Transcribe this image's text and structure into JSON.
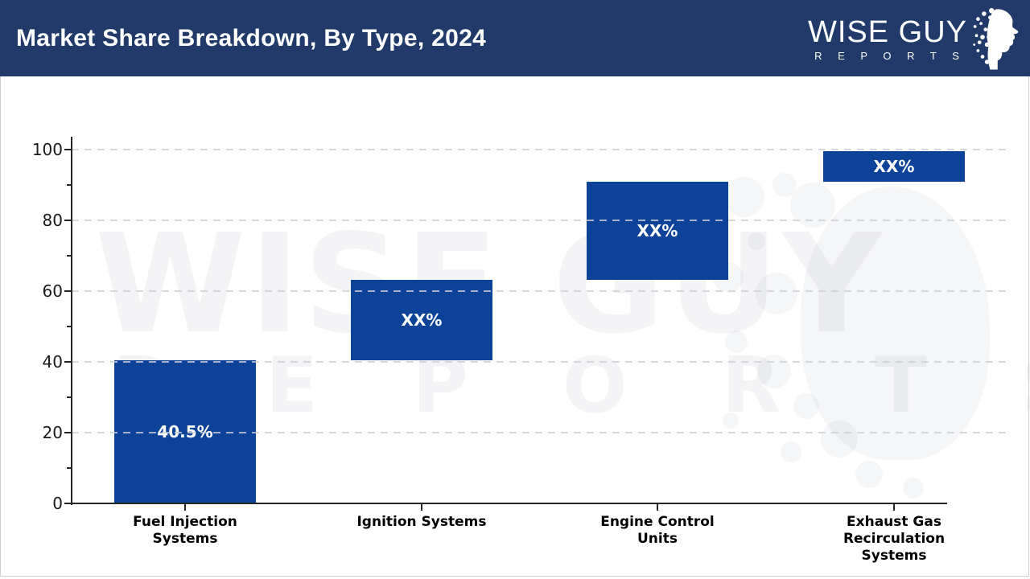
{
  "header": {
    "title": "Market Share Breakdown, By Type, 2024",
    "logo": {
      "line1": "WISE GUY",
      "line2": "R E P O R T S"
    }
  },
  "watermark": {
    "line1": "WISE GUY",
    "line2": "R E P O R T S"
  },
  "chart_data": {
    "type": "bar",
    "subtype": "waterfall",
    "title": "Market Share Breakdown, By Type, 2024",
    "categories": [
      "Fuel Injection Systems",
      "Ignition Systems",
      "Engine Control Units",
      "Exhaust Gas Recirculation Systems"
    ],
    "category_lines": [
      [
        "Fuel Injection",
        "Systems"
      ],
      [
        "Ignition Systems"
      ],
      [
        "Engine Control",
        "Units"
      ],
      [
        "Exhaust Gas",
        "Recirculation",
        "Systems"
      ]
    ],
    "segments": [
      {
        "category": "Fuel Injection Systems",
        "start": 0,
        "end": 40.5,
        "label": "40.5%"
      },
      {
        "category": "Ignition Systems",
        "start": 40.5,
        "end": 63.2,
        "label": "XX%"
      },
      {
        "category": "Engine Control Units",
        "start": 63.2,
        "end": 91,
        "label": "XX%"
      },
      {
        "category": "Exhaust Gas Recirculation Systems",
        "start": 91,
        "end": 99.6,
        "label": "XX%"
      }
    ],
    "xlabel": "",
    "ylabel": "",
    "ylim": [
      0,
      100
    ],
    "yticks": [
      0,
      20,
      40,
      60,
      80,
      100
    ],
    "minor_yticks": [
      10,
      30,
      50,
      70,
      90
    ],
    "grid": "horizontal-dashed",
    "legend_position": "none",
    "bar_color": "#0c4399",
    "bar_label_color": "#ffffff"
  },
  "colors": {
    "header_bg": "#213a69",
    "bar": "#0c4399",
    "axis": "#262626",
    "grid": "#d3d5da",
    "border": "#d0d0d0"
  }
}
